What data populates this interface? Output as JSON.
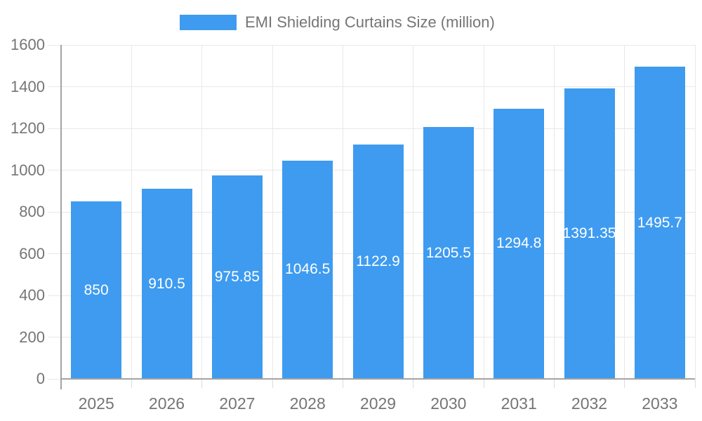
{
  "chart_data": {
    "type": "bar",
    "title": "EMI Shielding Curtains Size (million)",
    "legend_position": "top",
    "grid": true,
    "categories": [
      "2025",
      "2026",
      "2027",
      "2028",
      "2029",
      "2030",
      "2031",
      "2032",
      "2033"
    ],
    "series": [
      {
        "name": "EMI Shielding Curtains Size (million)",
        "values": [
          850,
          910.5,
          975.85,
          1046.5,
          1122.9,
          1205.5,
          1294.8,
          1391.35,
          1495.7
        ]
      }
    ],
    "value_labels": [
      "850",
      "910.5",
      "975.85",
      "1046.5",
      "1122.9",
      "1205.5",
      "1294.8",
      "1391.35",
      "1495.7"
    ],
    "xlabel": "",
    "ylabel": "",
    "ylim": [
      0,
      1600
    ],
    "yticks": [
      0,
      200,
      400,
      600,
      800,
      1000,
      1200,
      1400,
      1600
    ]
  },
  "colors": {
    "bar": "#3E9BF0",
    "grid": "#E8E8E8",
    "axis": "#A3A3A3",
    "x_tick": "#DCDCDC",
    "text": "#757575",
    "value_label": "#FFFFFF",
    "background": "#FFFFFF"
  }
}
